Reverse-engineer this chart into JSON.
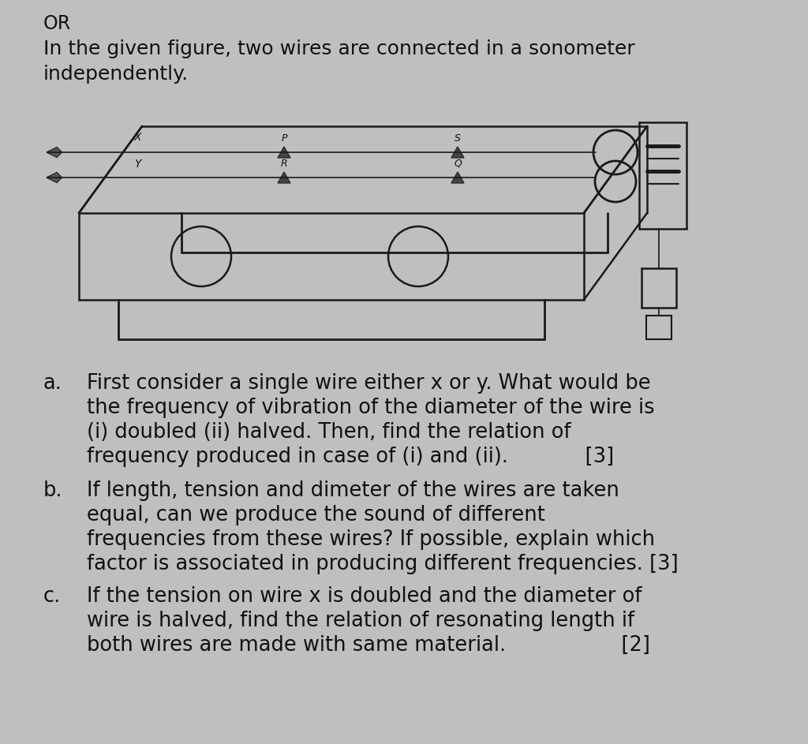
{
  "bg_color": "#c0bfbf",
  "title_or": "OR",
  "intro_line1": "In the given figure, two wires are connected in a sonometer",
  "intro_line2": "independently.",
  "question_a_label": "a.",
  "question_a_line1": "First consider a single wire either x or y. What would be",
  "question_a_line2": "the frequency of vibration of the diameter of the wire is",
  "question_a_line3": "(i) doubled (ii) halved. Then, find the relation of",
  "question_a_line4": "frequency produced in case of (i) and (ii).            [3]",
  "question_b_label": "b.",
  "question_b_line1": "If length, tension and dimeter of the wires are taken",
  "question_b_line2": "equal, can we produce the sound of different",
  "question_b_line3": "frequencies from these wires? If possible, explain which",
  "question_b_line4": "factor is associated in producing different frequencies. [3]",
  "question_c_label": "c.",
  "question_c_line1": "If the tension on wire x is doubled and the diameter of",
  "question_c_line2": "wire is halved, find the relation of resonating length if",
  "question_c_line3": "both wires are made with same material.                  [2]",
  "lc": "#1a1a1a",
  "peg_color": "#2a2a2a"
}
